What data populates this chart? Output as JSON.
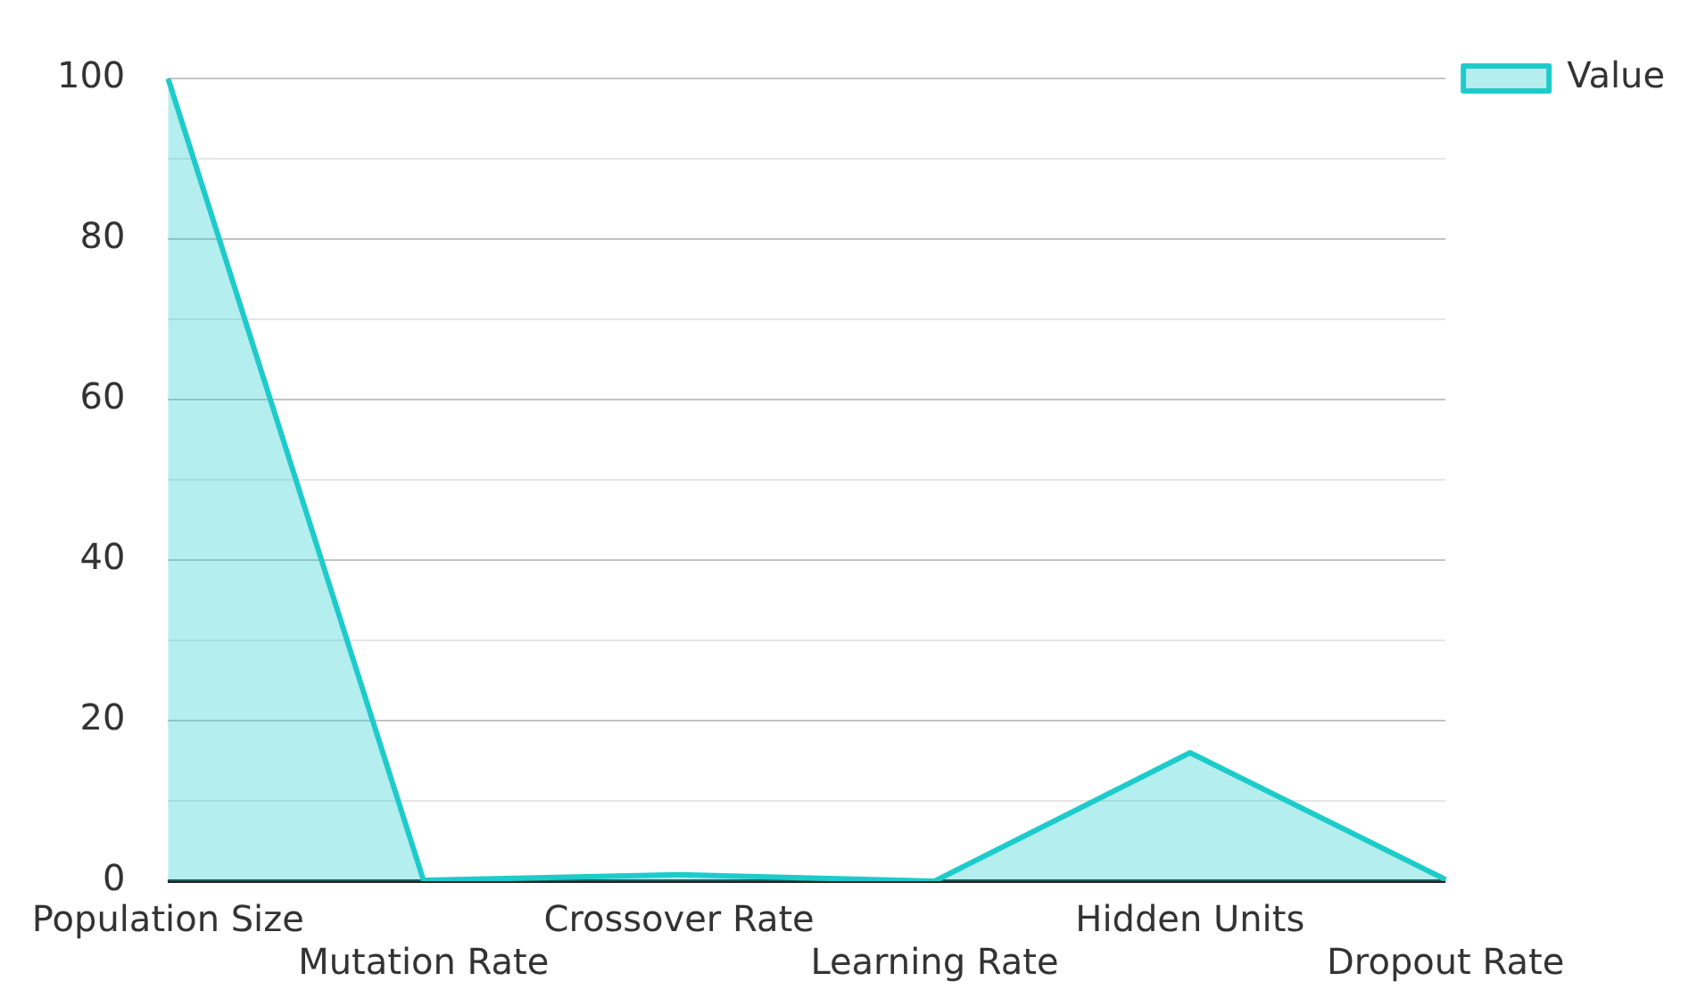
{
  "chart_data": {
    "type": "area",
    "categories": [
      "Population Size",
      "Mutation Rate",
      "Crossover Rate",
      "Learning Rate",
      "Hidden Units",
      "Dropout Rate"
    ],
    "series": [
      {
        "name": "Value",
        "color": "#1ecbcb",
        "values": [
          100,
          0.1,
          0.8,
          0,
          16,
          0.2
        ]
      }
    ],
    "ylim": [
      0,
      100
    ],
    "yticks": [
      0,
      {
        "value": 10,
        "label": null
      },
      20,
      {
        "value": 30,
        "label": null
      },
      40,
      {
        "value": 50,
        "label": null
      },
      60,
      {
        "value": 70,
        "label": null
      },
      80,
      {
        "value": 90,
        "label": null
      },
      100
    ],
    "grid": "y",
    "legend": "top right"
  }
}
